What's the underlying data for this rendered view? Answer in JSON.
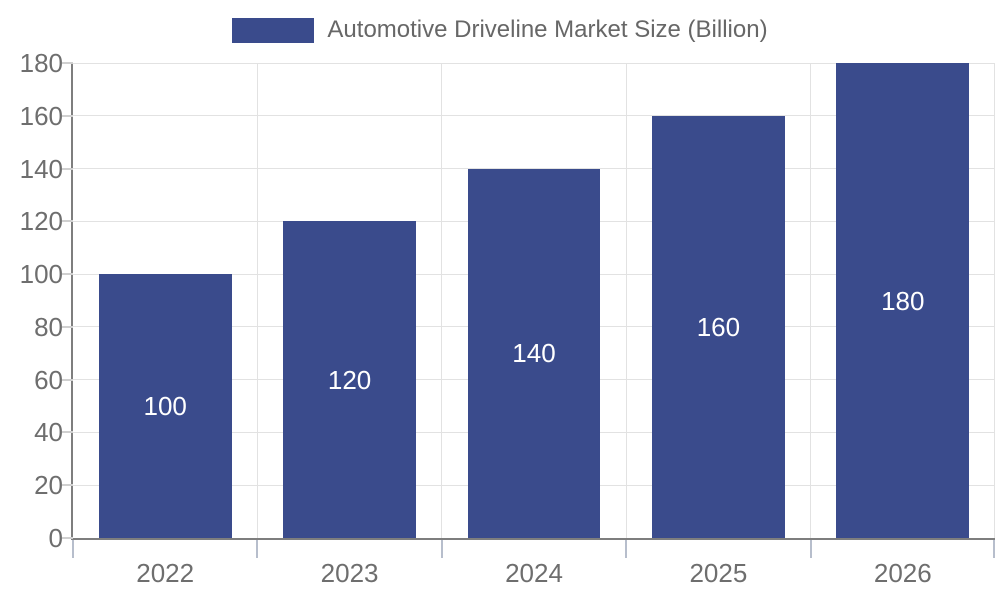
{
  "legend": {
    "label": "Automotive Driveline Market Size (Billion)"
  },
  "chart_data": {
    "type": "bar",
    "title": "Automotive Driveline Market Size (Billion)",
    "categories": [
      "2022",
      "2023",
      "2024",
      "2025",
      "2026"
    ],
    "values": [
      100,
      120,
      140,
      160,
      180
    ],
    "series": [
      {
        "name": "Automotive Driveline Market Size (Billion)",
        "values": [
          100,
          120,
          140,
          160,
          180
        ]
      }
    ],
    "bar_value_labels": [
      "100",
      "120",
      "140",
      "160",
      "180"
    ],
    "xlabel": "",
    "ylabel": "",
    "ylim": [
      0,
      180
    ],
    "yticks": [
      0,
      20,
      40,
      60,
      80,
      100,
      120,
      140,
      160,
      180
    ],
    "grid": true,
    "legend_position": "top-center",
    "bar_width_fraction": 0.72
  },
  "colors": {
    "background": "#FFFFFF",
    "bar": "#3A4B8C",
    "bar_label": "#FFFFFF",
    "axis": "#7E7E7E",
    "grid": "#E2E2E2",
    "tick_mark": "#D0D0D0",
    "x_tick_mark": "#B7BECC",
    "tick_label": "#6E6E6E",
    "legend_text": "#676767"
  }
}
